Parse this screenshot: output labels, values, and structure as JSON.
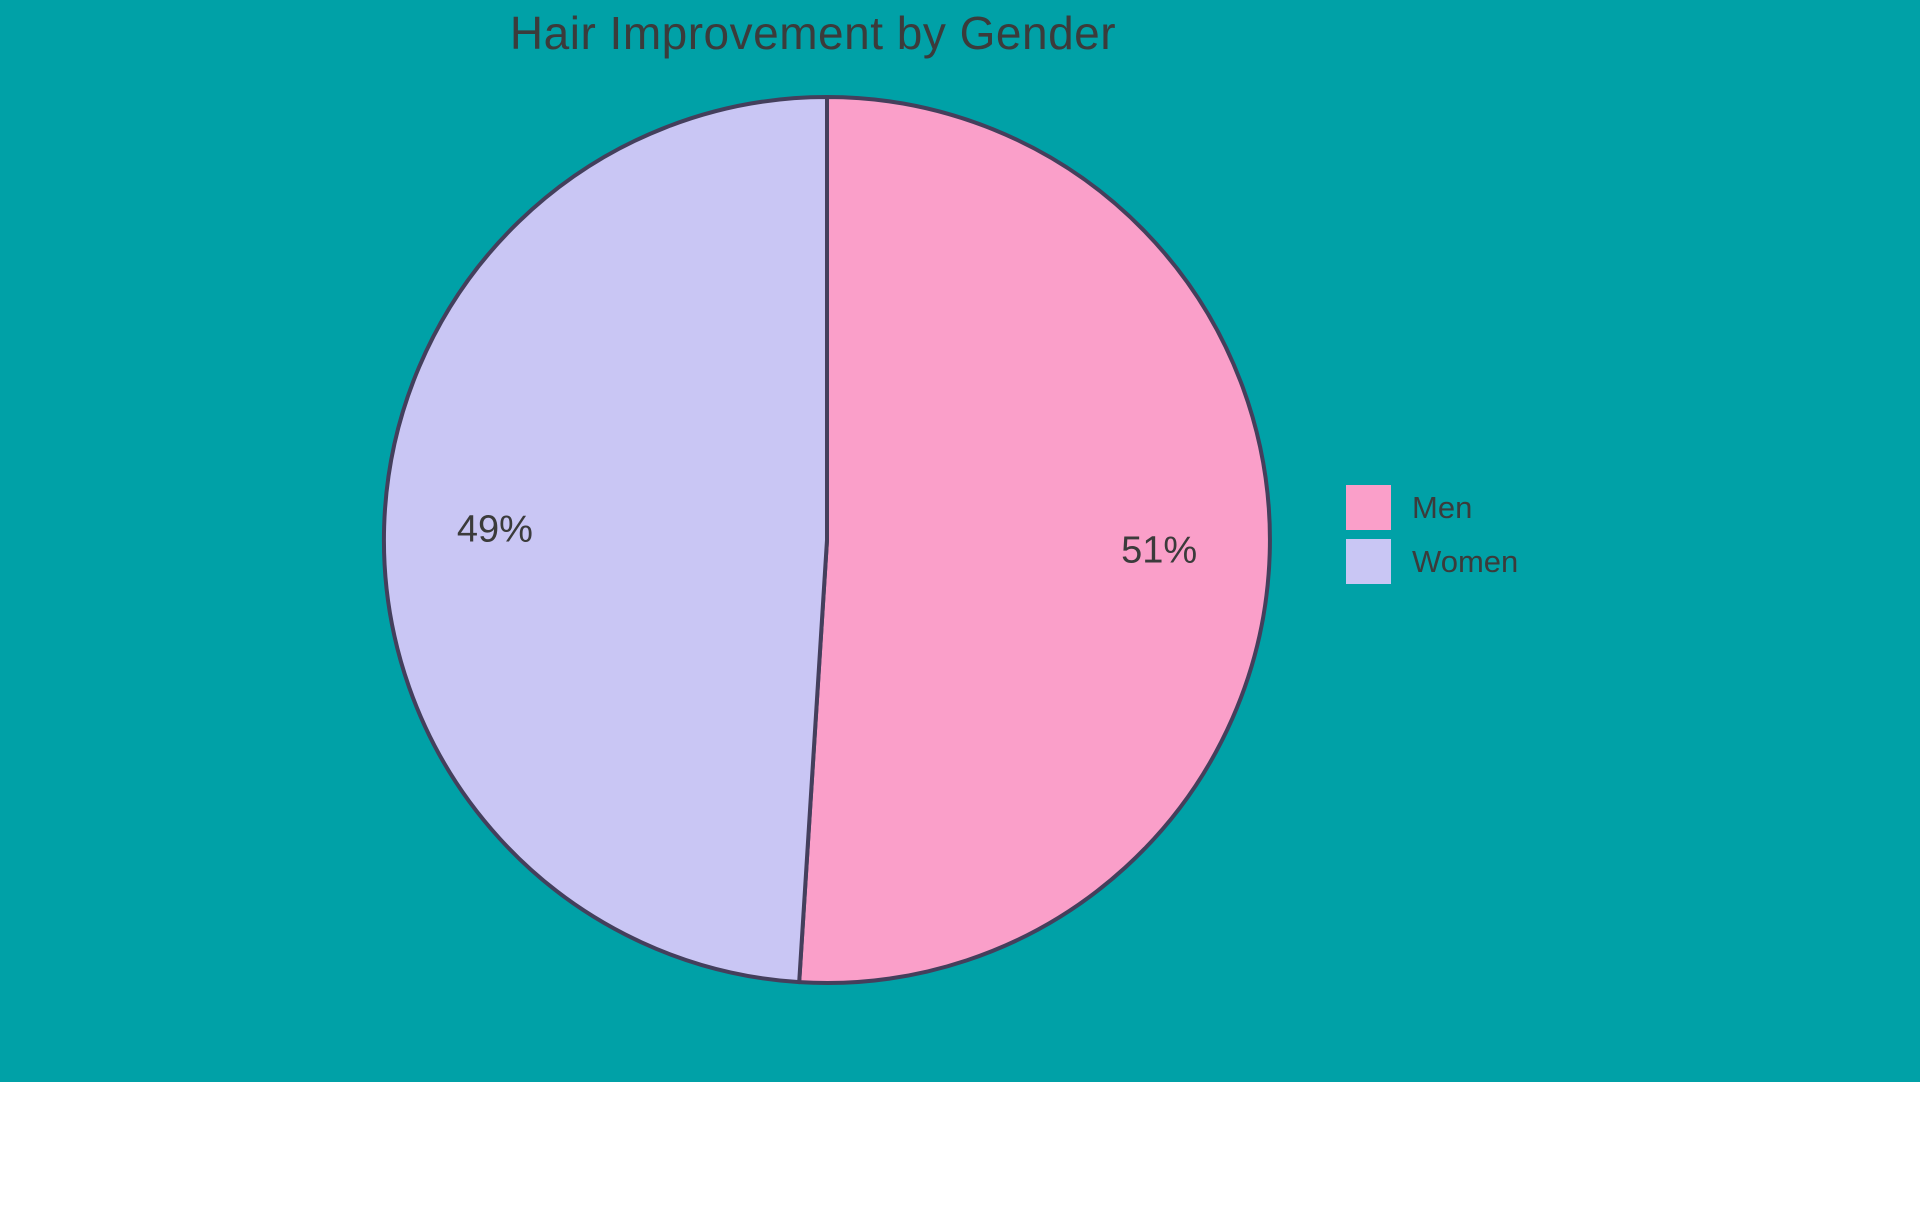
{
  "page": {
    "background": "#FFFFFF"
  },
  "chart_data": {
    "type": "pie",
    "title": "Hair Improvement by Gender",
    "categories": [
      "Men",
      "Women"
    ],
    "values": [
      51,
      49
    ],
    "value_labels": [
      "51%",
      "49%"
    ],
    "colors": [
      "#FA9FC9",
      "#C9C6F4"
    ],
    "slice_stroke_color": "#443F5C",
    "slice_stroke_width": 4,
    "background": "#00A1A7",
    "text_color": "#3B3B3B",
    "legend_position": "right",
    "start_angle_deg": 0,
    "direction": "clockwise",
    "label_radius_fraction": 0.75,
    "legend_entries": [
      "Men",
      "Women"
    ]
  }
}
